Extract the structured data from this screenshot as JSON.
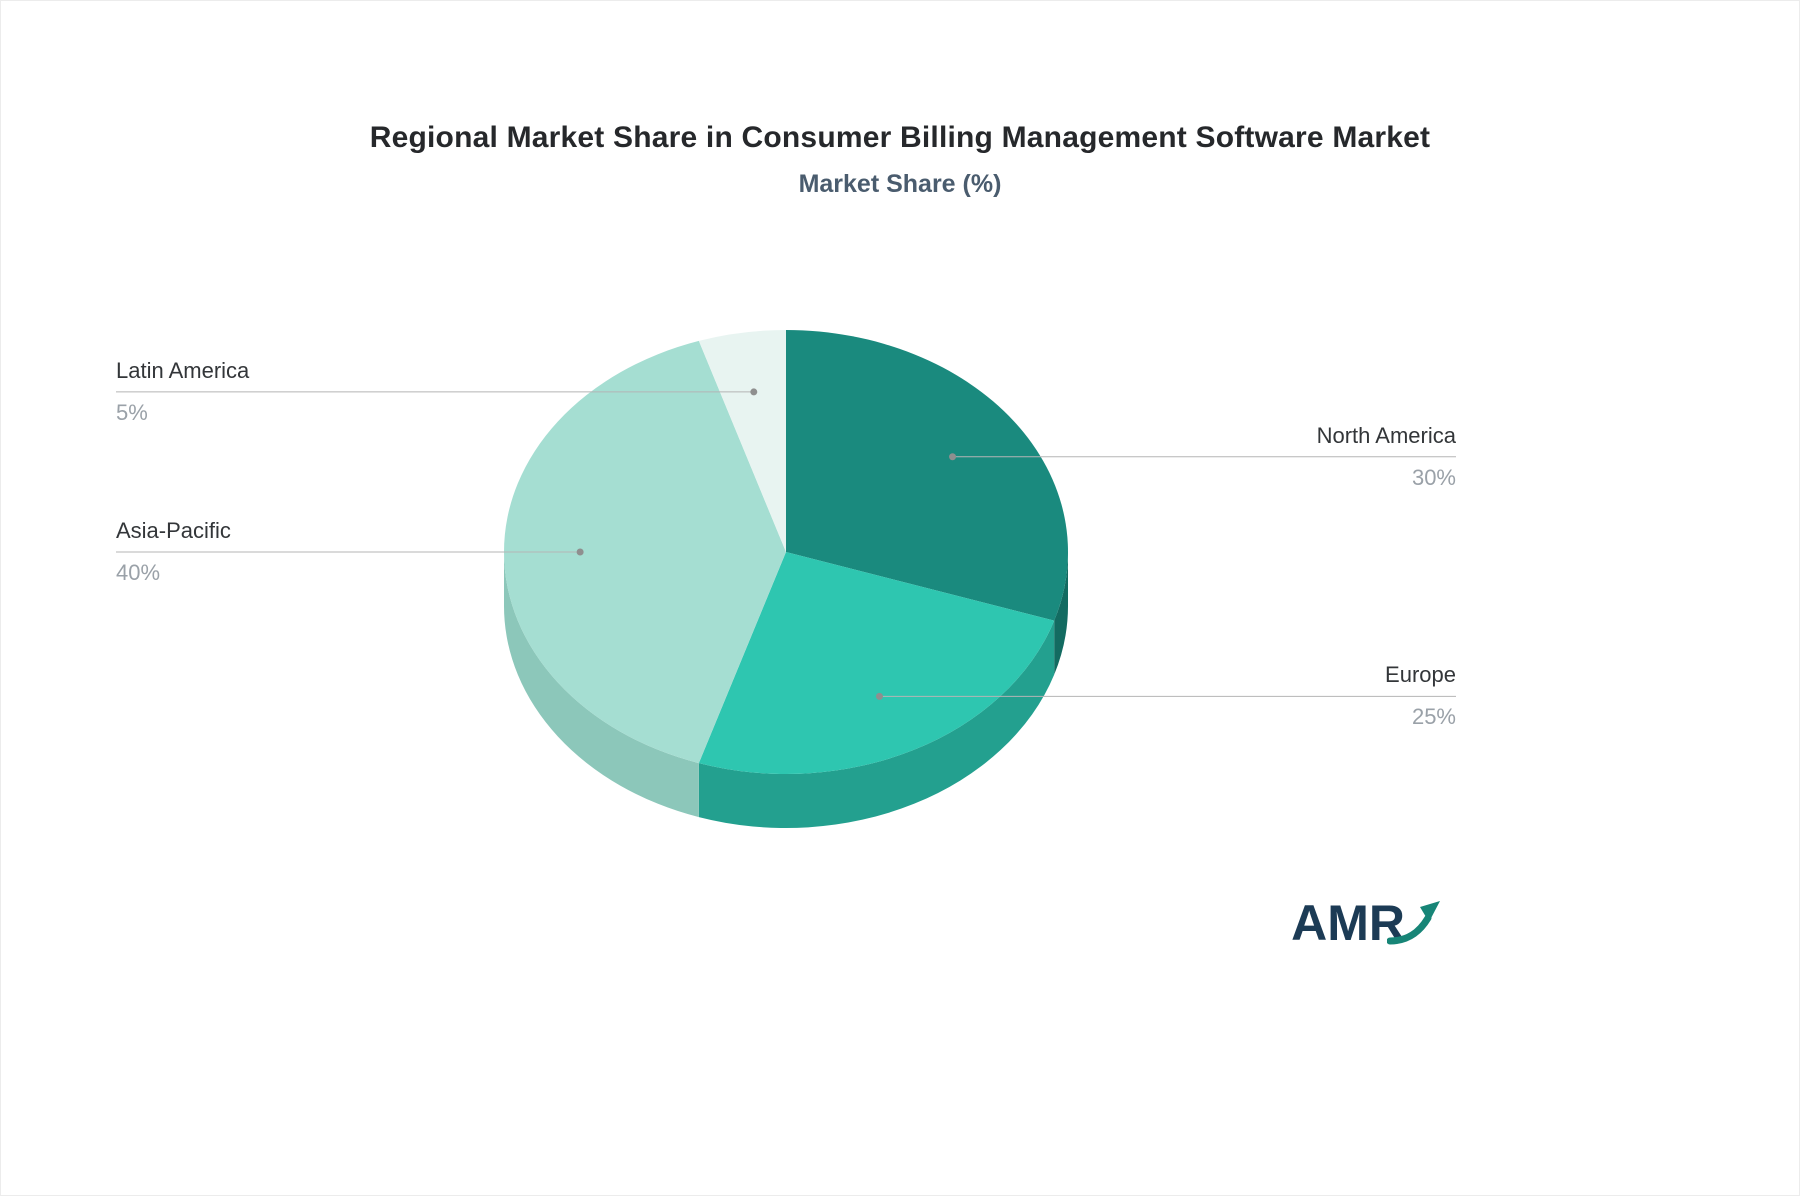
{
  "title": "Regional Market Share in Consumer Billing Management Software Market",
  "subtitle": "Market Share (%)",
  "logo": {
    "text": "AMR"
  },
  "chart_data": {
    "type": "pie",
    "title": "Regional Market Share in Consumer Billing Management Software Market",
    "subtitle": "Market Share (%)",
    "unit": "%",
    "start_angle_deg": 0,
    "direction": "clockwise",
    "style": "3d-pie",
    "legend_position": "none",
    "label_style": "leader-lines",
    "slices": [
      {
        "label": "North America",
        "value": 30,
        "display": "30%",
        "color": "#1a8a7e",
        "side_color": "#136b61"
      },
      {
        "label": "Europe",
        "value": 25,
        "display": "25%",
        "color": "#2ec6b0",
        "side_color": "#23a08f"
      },
      {
        "label": "Asia-Pacific",
        "value": 40,
        "display": "40%",
        "color": "#a5ded2",
        "side_color": "#8cc7ba"
      },
      {
        "label": "Latin America",
        "value": 5,
        "display": "5%",
        "color": "#e8f4f1",
        "side_color": "#cfe4df"
      }
    ],
    "label_text_color": "#333639",
    "label_value_color": "#9aa1a8",
    "leader_line_color": "#b5b5b5"
  }
}
